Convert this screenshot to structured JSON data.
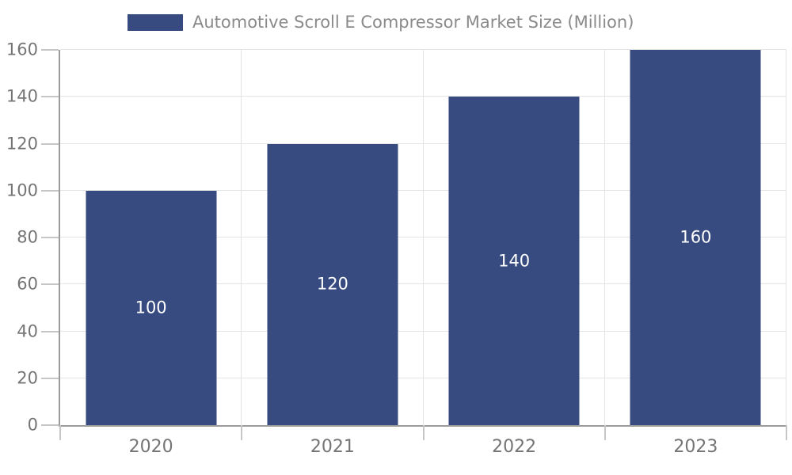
{
  "chart_data": {
    "type": "bar",
    "title": "",
    "legend_label": "Automotive Scroll E Compressor Market Size (Million)",
    "legend_position": "top-center",
    "categories": [
      "2020",
      "2021",
      "2022",
      "2023"
    ],
    "values": [
      100,
      120,
      140,
      160
    ],
    "bar_labels": [
      "100",
      "120",
      "140",
      "160"
    ],
    "xlabel": "",
    "ylabel": "",
    "ylim": [
      0,
      160
    ],
    "yticks": [
      0,
      20,
      40,
      60,
      80,
      100,
      120,
      140,
      160
    ],
    "grid": true,
    "bar_width_fraction": 0.72,
    "colors": {
      "bar": "#374B80",
      "axis_line": "#9B9B9B",
      "grid_line": "#E4E4E4",
      "tick_mark": "#C6C6C6",
      "tick_label": "#757575",
      "legend_text": "#8A8A8A",
      "bar_label_text": "#FFFFFF",
      "background": "#FFFFFF"
    }
  }
}
